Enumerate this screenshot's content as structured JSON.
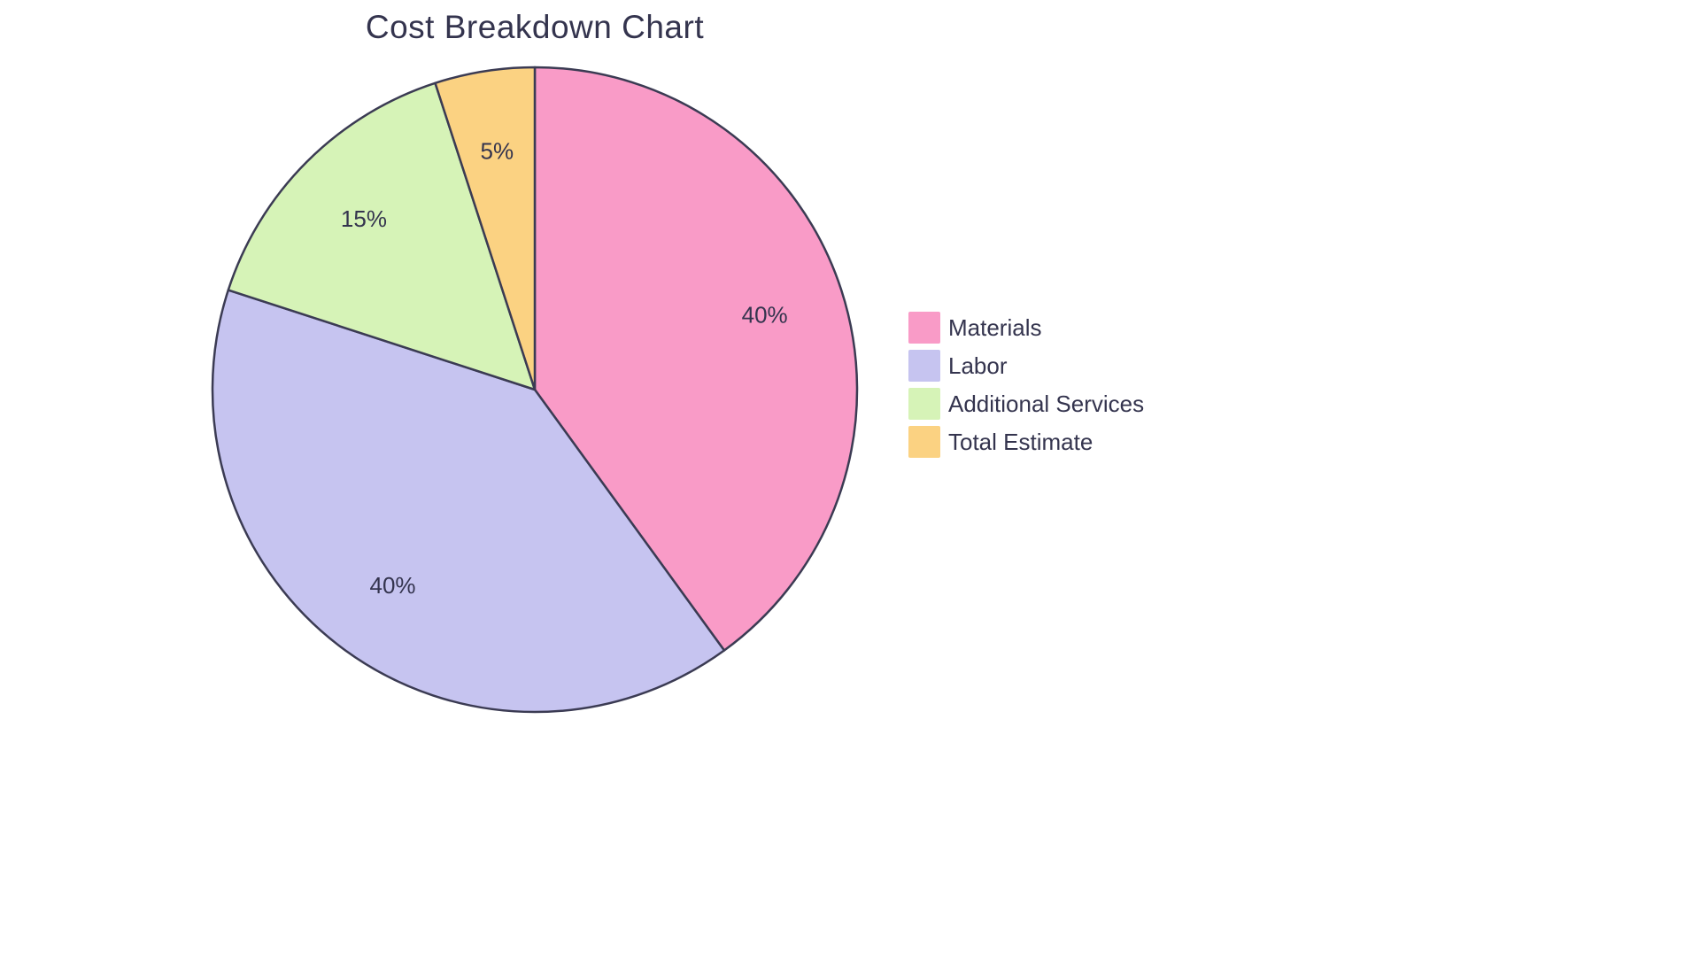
{
  "page": {
    "background": "#ffffff"
  },
  "chart_data": {
    "type": "pie",
    "title": "Cost Breakdown Chart",
    "categories": [
      "Materials",
      "Labor",
      "Additional Services",
      "Total Estimate"
    ],
    "values": [
      40,
      40,
      15,
      5
    ],
    "labels": [
      "40%",
      "40%",
      "15%",
      "5%"
    ],
    "colors": [
      "#F99BC7",
      "#C6C4F0",
      "#D6F3B7",
      "#FBD282"
    ],
    "stroke_color": "#3B3B53",
    "text_color": "#34344E",
    "legend_position": "right",
    "start_angle_deg": -90,
    "direction": "clockwise",
    "grid": false
  }
}
